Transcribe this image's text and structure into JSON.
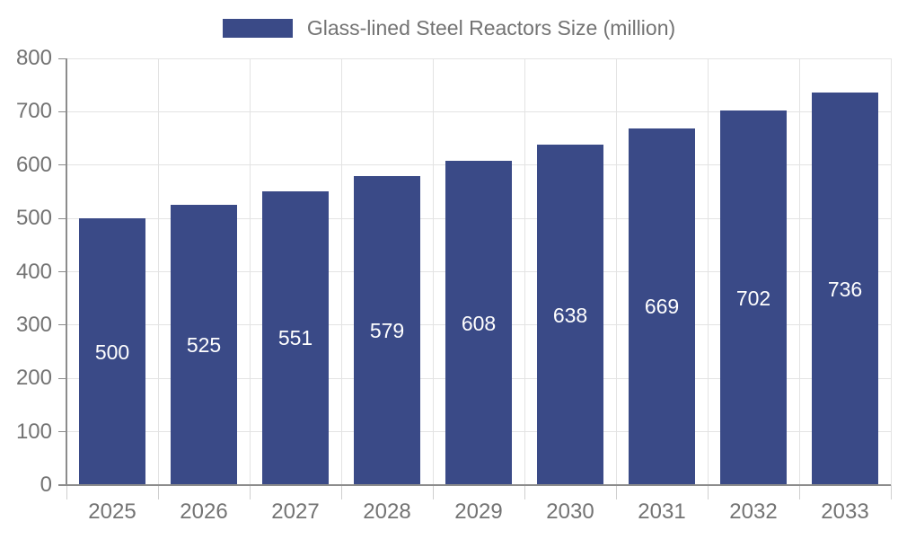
{
  "legend": {
    "label": "Glass-lined Steel Reactors Size (million)"
  },
  "chart_data": {
    "type": "bar",
    "title": "Glass-lined Steel Reactors Size (million)",
    "series_name": "Glass-lined Steel Reactors Size (million)",
    "categories": [
      "2025",
      "2026",
      "2027",
      "2028",
      "2029",
      "2030",
      "2031",
      "2032",
      "2033"
    ],
    "values": [
      500,
      525,
      551,
      579,
      608,
      638,
      669,
      702,
      736
    ],
    "value_labels": [
      "500",
      "525",
      "551",
      "579",
      "608",
      "638",
      "669",
      "702",
      "736"
    ],
    "xlabel": "",
    "ylabel": "",
    "ylim": [
      0,
      800
    ],
    "yticks": [
      0,
      100,
      200,
      300,
      400,
      500,
      600,
      700,
      800
    ],
    "grid": true,
    "legend_position": "top-center",
    "value_label_position": "inside-center",
    "colors": {
      "bar": "#3a4a87",
      "grid": "#e3e3e3",
      "axis": "#8c8c8c",
      "x_tick_mark": "#cfcfcf",
      "tick_text": "#737373",
      "value_text": "#ffffff",
      "background": "#ffffff"
    }
  }
}
